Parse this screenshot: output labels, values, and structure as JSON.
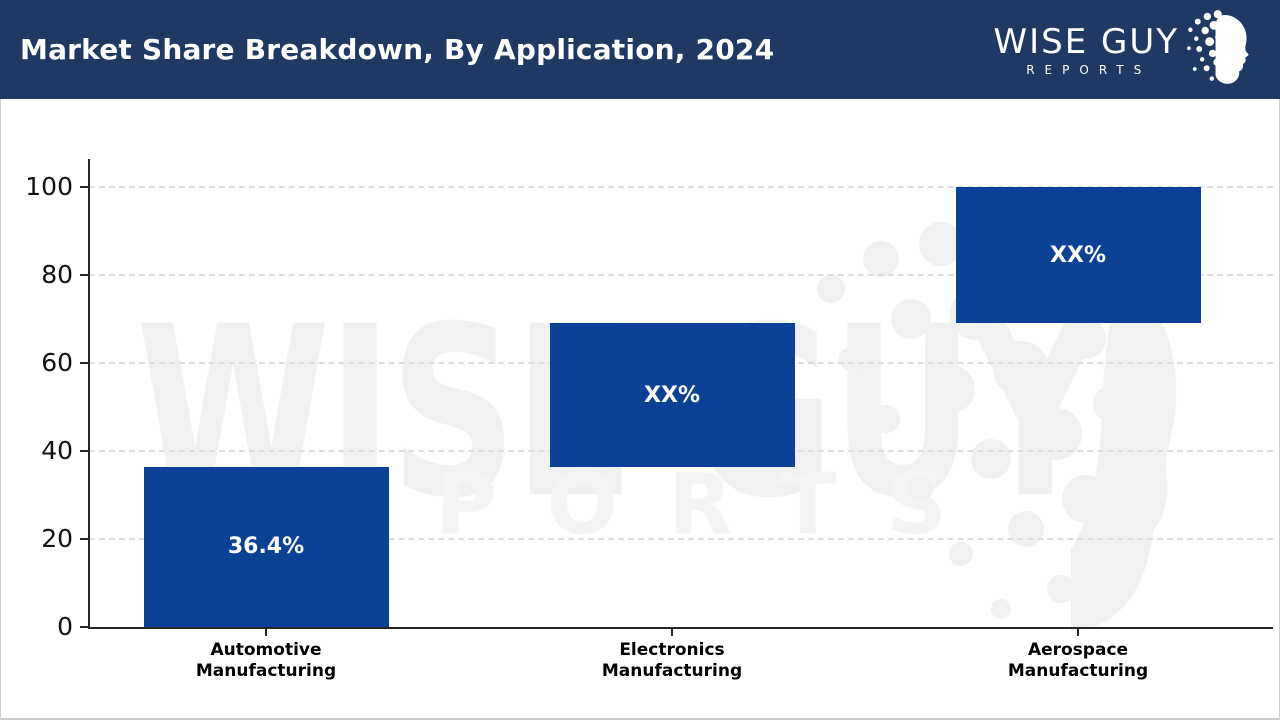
{
  "header": {
    "title": "Market Share Breakdown, By Application, 2024",
    "brand": {
      "name": "WISE GUY",
      "sub": "REPORTS"
    }
  },
  "watermark": {
    "main": "WISE GUY",
    "sub": "REPORTS"
  },
  "chart_data": {
    "type": "bar",
    "subtype": "floating-waterfall",
    "title": "Market Share Breakdown, By Application, 2024",
    "categories": [
      "Automotive Manufacturing",
      "Electronics Manufacturing",
      "Aerospace Manufacturing"
    ],
    "series": [
      {
        "name": "Market share (%)",
        "segments": [
          {
            "category": "Automotive Manufacturing",
            "start": 0,
            "end": 36.4,
            "label": "36.4%"
          },
          {
            "category": "Electronics Manufacturing",
            "start": 36.4,
            "end": 69,
            "label": "XX%"
          },
          {
            "category": "Aerospace Manufacturing",
            "start": 69,
            "end": 100,
            "label": "XX%"
          }
        ]
      }
    ],
    "xlabel": "",
    "ylabel": "",
    "ylim": [
      0,
      100
    ],
    "yticks": [
      0,
      20,
      40,
      60,
      80,
      100
    ],
    "grid": {
      "axis": "y",
      "style": "dashed",
      "color": "#dedede"
    },
    "legend": null,
    "colors": {
      "bar": "#0b4295",
      "bar_label": "#ffffff",
      "header_background": "#1f3864",
      "axis": "#262626",
      "watermark": "#f1f1f1"
    }
  }
}
